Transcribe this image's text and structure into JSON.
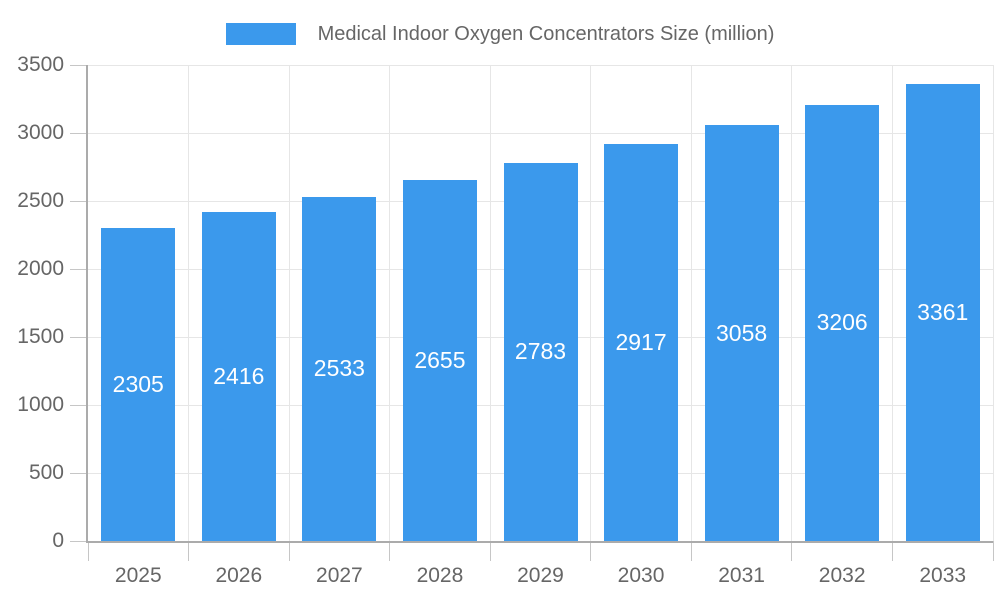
{
  "chart_data": {
    "type": "bar",
    "title": "",
    "categories": [
      "2025",
      "2026",
      "2027",
      "2028",
      "2029",
      "2030",
      "2031",
      "2032",
      "2033"
    ],
    "series": [
      {
        "name": "Medical Indoor Oxygen Concentrators Size (million)",
        "values": [
          2305,
          2416,
          2533,
          2655,
          2783,
          2917,
          3058,
          3206,
          3361
        ]
      }
    ],
    "value_labels_shown": true,
    "xlabel": "",
    "ylabel": "",
    "ylim": [
      0,
      3500
    ],
    "yticks": [
      0,
      500,
      1000,
      1500,
      2000,
      2500,
      3000,
      3500
    ],
    "grid": true,
    "legend_position": "top",
    "colors": {
      "bar": "#3B99EC",
      "grid": "#E6E6E6",
      "axis": "#ABABAB",
      "tick": "#C6C6C6",
      "text": "#666666",
      "value_label": "#FFFFFF",
      "background": "#FFFFFF"
    }
  }
}
